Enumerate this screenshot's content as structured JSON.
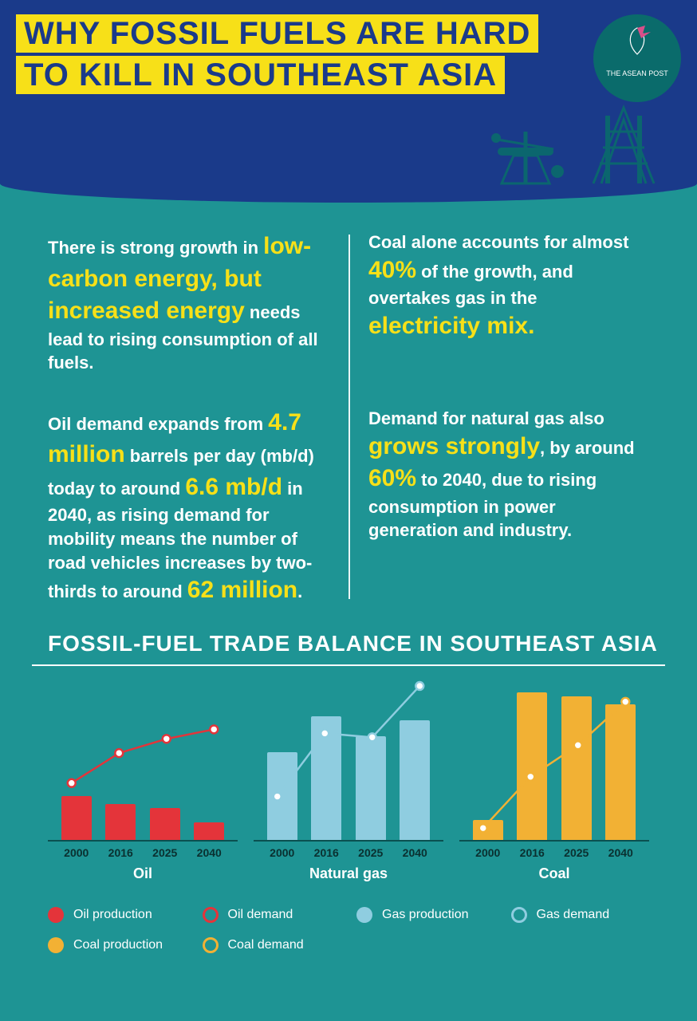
{
  "title": {
    "line1": "WHY FOSSIL FUELS ARE HARD",
    "line2": "TO KILL IN SOUTHEAST ASIA"
  },
  "logo": {
    "text": "THE ASEAN POST"
  },
  "colors": {
    "header_bg": "#1a3a8a",
    "page_bg": "#1e9494",
    "highlight": "#f7e018",
    "oil": "#e4343a",
    "gas": "#8fcde0",
    "coal": "#f2b134",
    "axis": "#0a5050",
    "white": "#ffffff"
  },
  "facts": {
    "topLeft": {
      "pre": "There is strong growth in ",
      "hl": "low-carbon energy, but increased energy",
      "post": " needs lead to rising consumption of all fuels."
    },
    "topRight": {
      "pre": "Coal alone accounts for almost ",
      "hl1": "40%",
      "mid": " of the growth, and overtakes gas in the ",
      "hl2": "electricity mix."
    },
    "bottomLeft": {
      "pre": "Oil demand expands from ",
      "hl1": "4.7 million",
      "mid1": " barrels per day (mb/d) today to around ",
      "hl2": "6.6 mb/d",
      "mid2": " in 2040, as rising demand for mobility means the number of road vehicles increases by two-thirds to around ",
      "hl3": "62 million",
      "post": "."
    },
    "bottomRight": {
      "pre": "Demand for natural gas also ",
      "hl1": "grows strongly",
      "mid1": ", by around ",
      "hl2": "60%",
      "post": " to 2040, due to rising consumption in power generation and industry."
    }
  },
  "chartSection": {
    "title": "FOSSIL-FUEL TRADE BALANCE IN SOUTHEAST ASIA",
    "ymax": 200,
    "categories": [
      "2000",
      "2016",
      "2025",
      "2040"
    ],
    "charts": [
      {
        "name": "Oil",
        "bar_color": "#e4343a",
        "line_color": "#e4343a",
        "marker": "#ffffff",
        "bars": [
          55,
          45,
          40,
          22
        ],
        "line": [
          72,
          110,
          128,
          140
        ]
      },
      {
        "name": "Natural gas",
        "bar_color": "#8fcde0",
        "line_color": "#8fcde0",
        "marker": "#ffffff",
        "bars": [
          110,
          155,
          130,
          150
        ],
        "line": [
          55,
          135,
          130,
          195
        ]
      },
      {
        "name": "Coal",
        "bar_color": "#f2b134",
        "line_color": "#f2b134",
        "marker": "#ffffff",
        "bars": [
          25,
          185,
          180,
          170
        ],
        "line": [
          15,
          80,
          120,
          175
        ]
      }
    ]
  },
  "legend": [
    {
      "type": "fill",
      "color": "#e4343a",
      "label": "Oil production"
    },
    {
      "type": "ring",
      "color": "#e4343a",
      "label": "Oil demand"
    },
    {
      "type": "fill",
      "color": "#8fcde0",
      "label": "Gas production"
    },
    {
      "type": "ring",
      "color": "#8fcde0",
      "label": "Gas demand"
    },
    {
      "type": "fill",
      "color": "#f2b134",
      "label": "Coal production"
    },
    {
      "type": "ring",
      "color": "#f2b134",
      "label": "Coal demand"
    }
  ]
}
